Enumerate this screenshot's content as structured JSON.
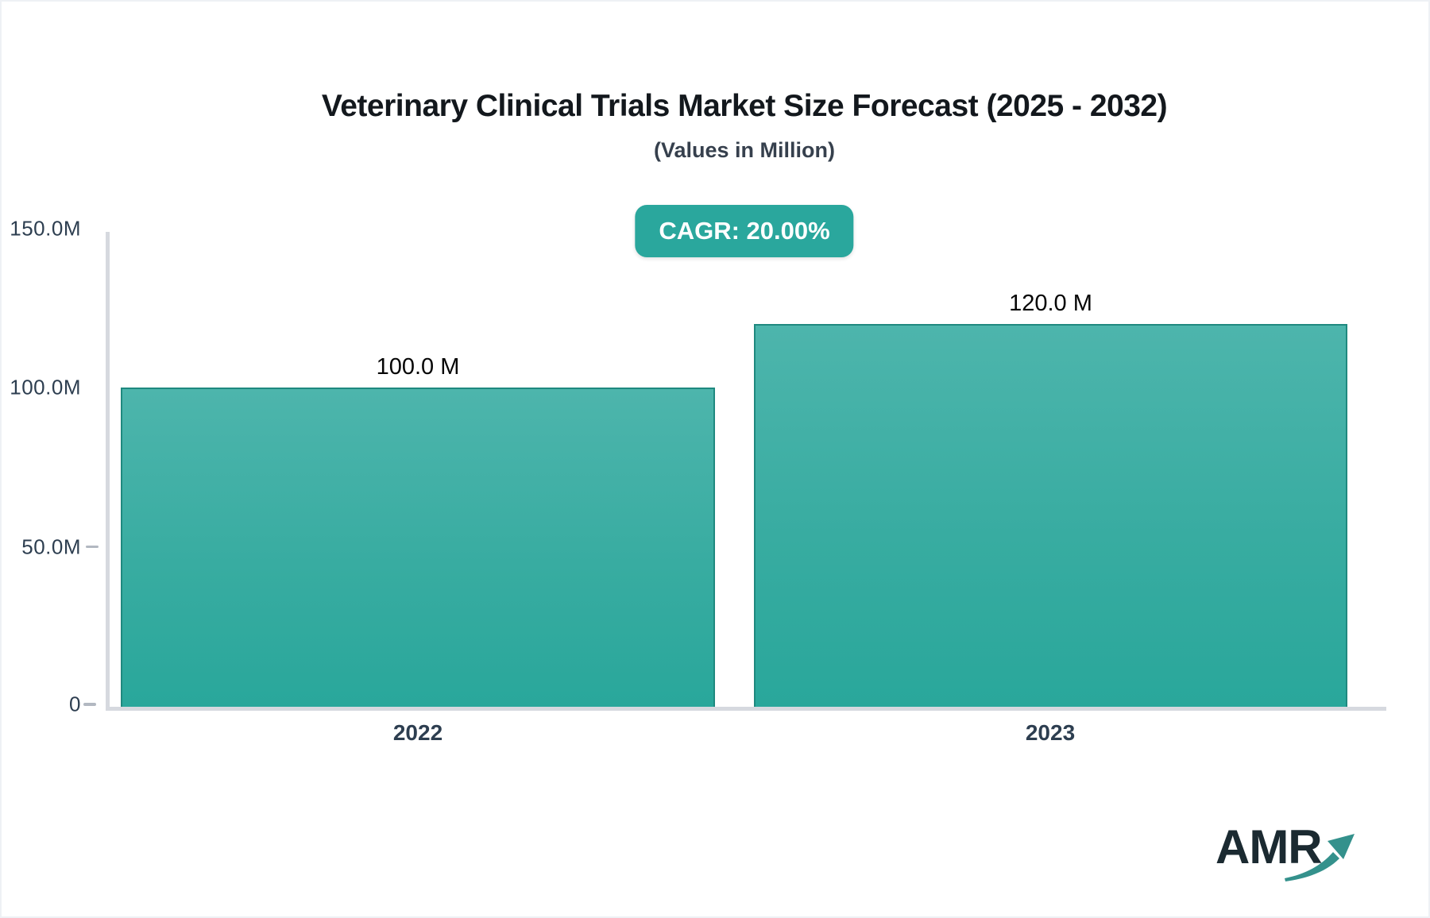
{
  "chart_data": {
    "type": "bar",
    "title": "Veterinary Clinical Trials Market Size Forecast (2025 - 2032)",
    "subtitle": "(Values in Million)",
    "cagr_label": "CAGR: 20.00%",
    "categories": [
      "2022",
      "2023"
    ],
    "values": [
      100.0,
      120.0
    ],
    "bar_labels": [
      "100.0 M",
      "120.0 M"
    ],
    "y_ticks": [
      "150.0M",
      "100.0M",
      "50.0M",
      "0"
    ],
    "ylim": [
      0,
      150
    ],
    "xlabel": "",
    "ylabel": "",
    "grid": false,
    "legend": false,
    "unit": "Million",
    "colors": {
      "accent": "#2aa79d",
      "bar_gradient_top": "#4db5ac",
      "bar_gradient_bottom": "#29a79b",
      "bar_border": "#1f897f",
      "axis": "#d6d9df",
      "label_text": "#2d3e50"
    }
  },
  "logo": {
    "text": "AMR"
  }
}
